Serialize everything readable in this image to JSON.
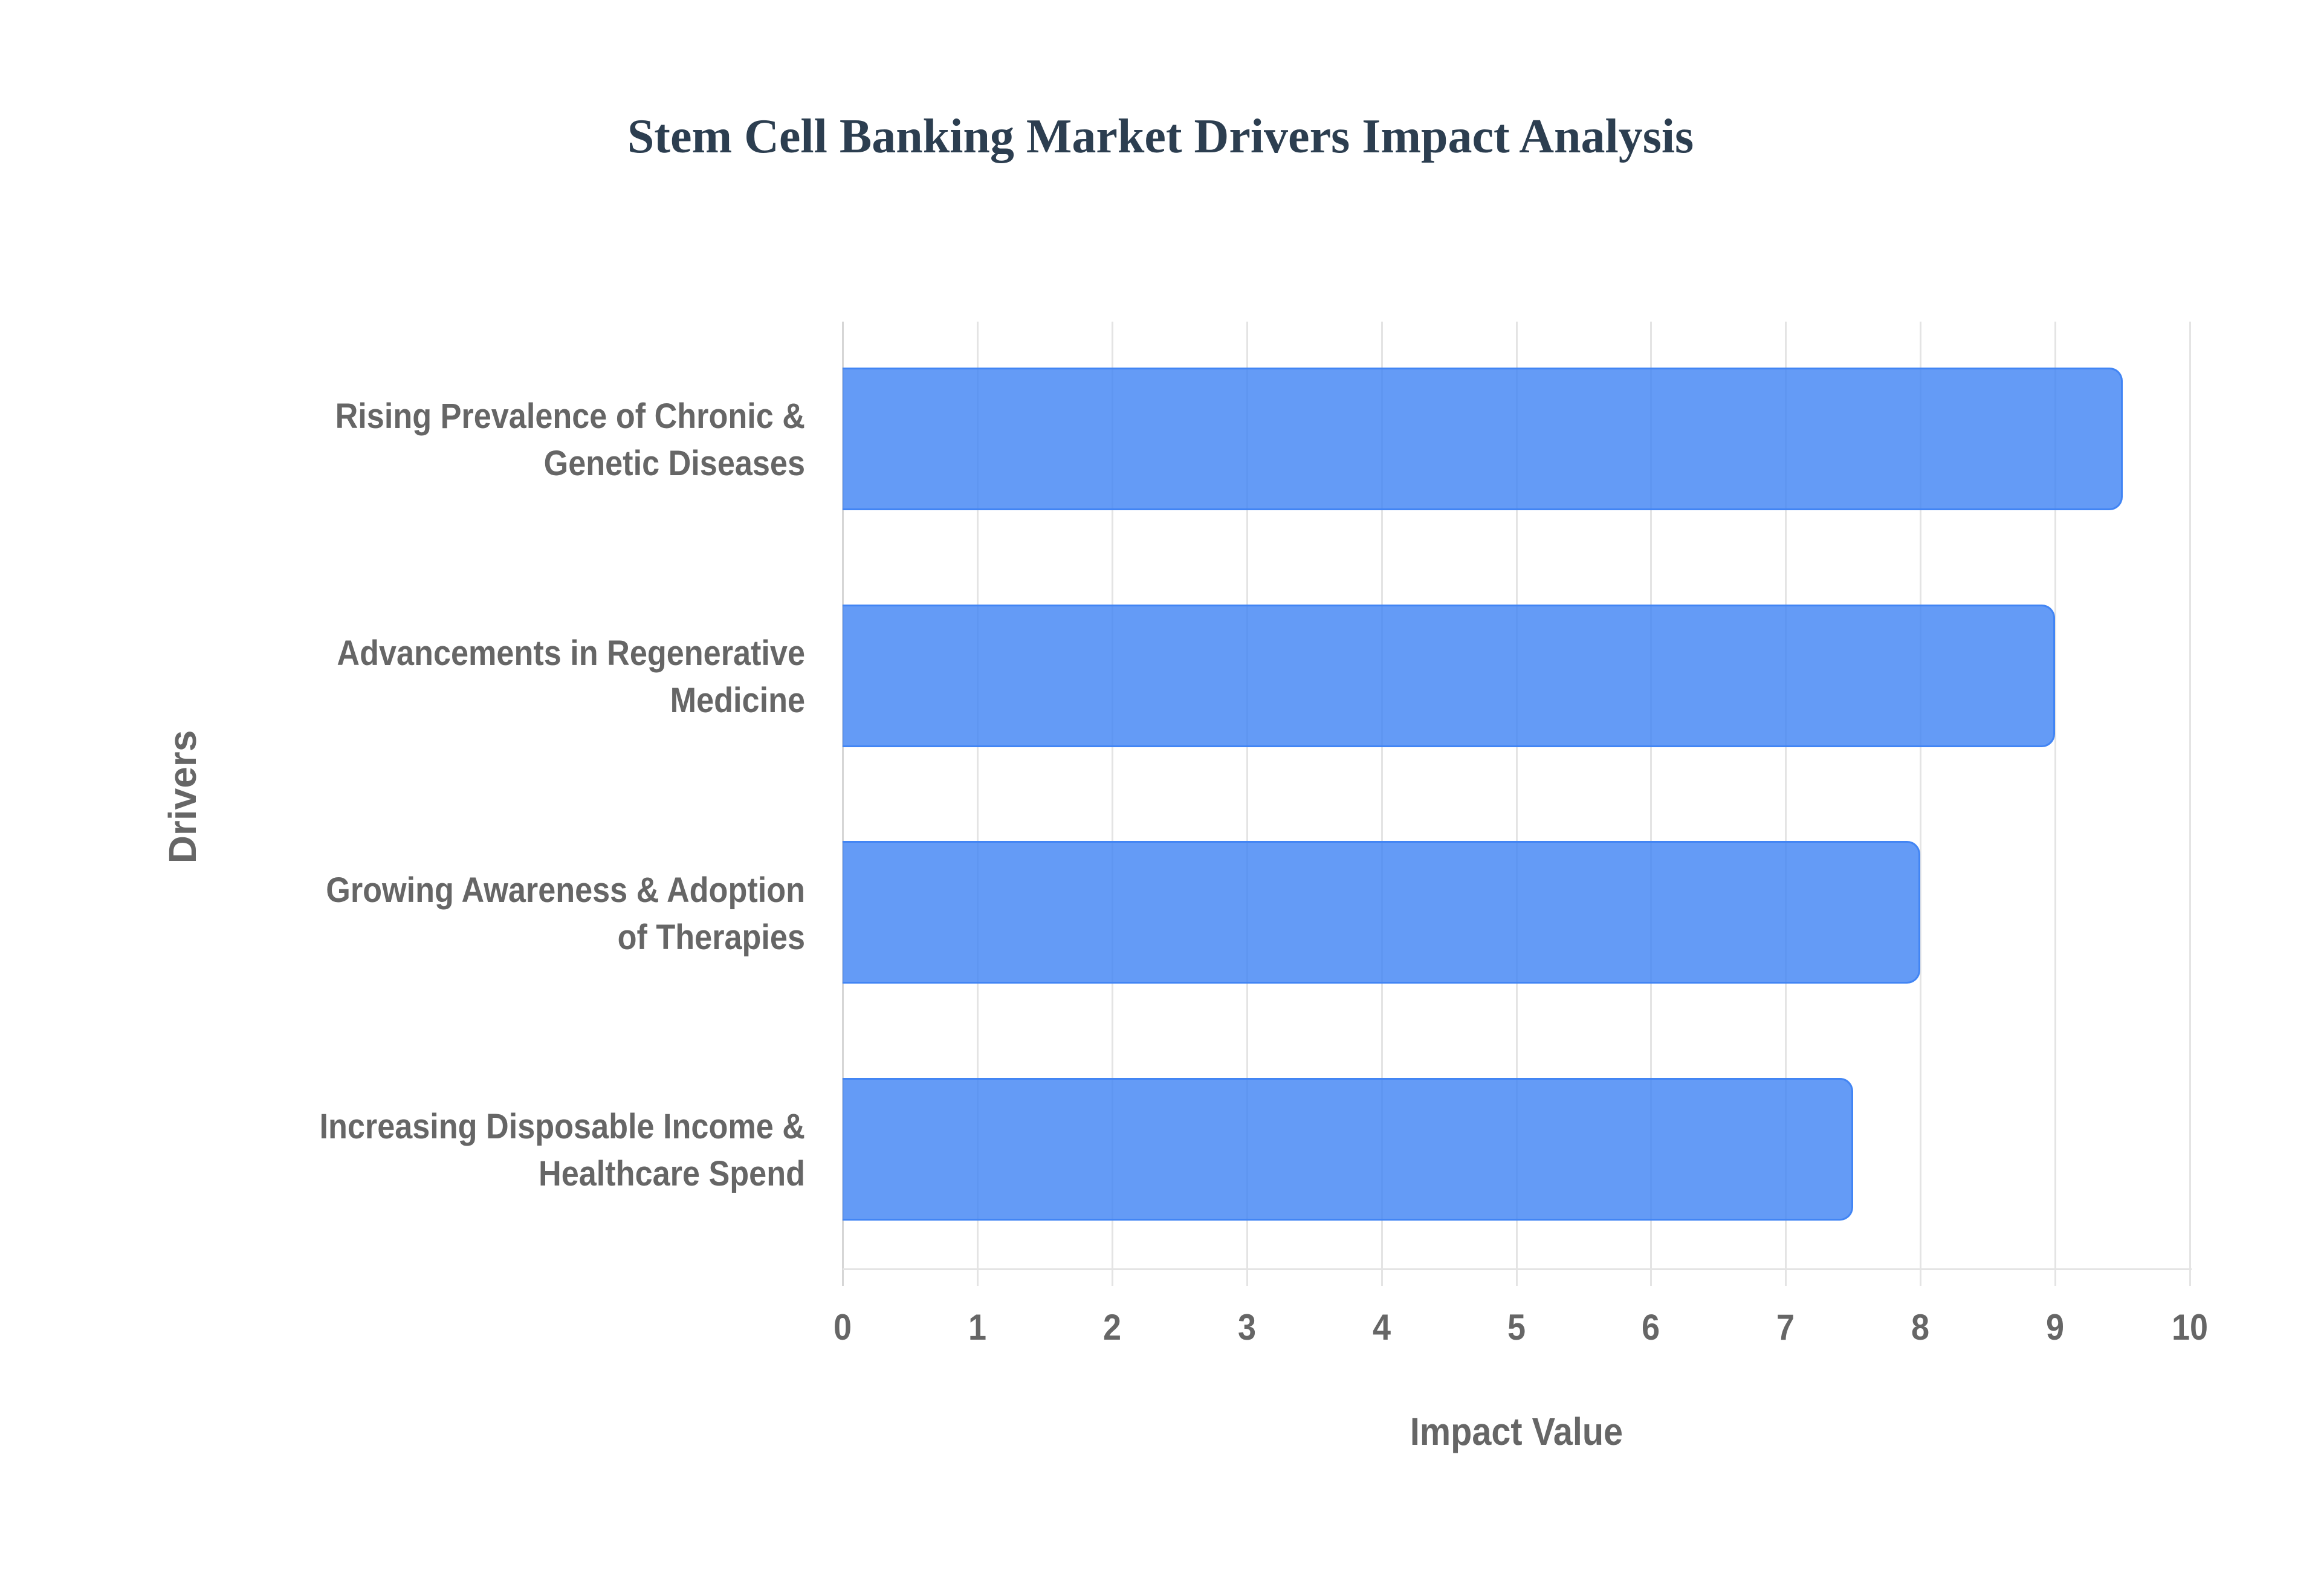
{
  "chart_data": {
    "type": "bar",
    "orientation": "horizontal",
    "title": "Stem Cell Banking Market Drivers Impact Analysis",
    "xlabel": "Impact Value",
    "ylabel": "Drivers",
    "categories": [
      "Rising Prevalence of Chronic & Genetic Diseases",
      "Advancements in Regenerative Medicine",
      "Growing Awareness & Adoption of Therapies",
      "Increasing Disposable Income & Healthcare Spend"
    ],
    "category_lines": [
      [
        "Rising Prevalence of Chronic &",
        "Genetic Diseases"
      ],
      [
        "Advancements in Regenerative",
        "Medicine"
      ],
      [
        "Growing Awareness & Adoption",
        "of Therapies"
      ],
      [
        "Increasing Disposable Income &",
        "Healthcare Spend"
      ]
    ],
    "values": [
      9.5,
      9.0,
      8.0,
      7.5
    ],
    "xlim": [
      0,
      10
    ],
    "xticks": [
      "0",
      "1",
      "2",
      "3",
      "4",
      "5",
      "6",
      "7",
      "8",
      "9",
      "10"
    ],
    "grid": true,
    "legend": null,
    "colors": {
      "bar_fill": "#6199f5",
      "bar_border": "#4285f4",
      "title": "#2c3e50",
      "axis_text": "#666666",
      "grid": "#e4e4e4"
    }
  }
}
